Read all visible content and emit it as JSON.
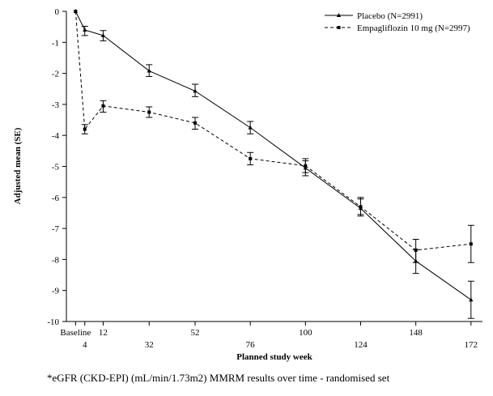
{
  "chart_data": {
    "type": "line",
    "title": "",
    "xlabel": "Planned study week",
    "ylabel": "Adjusted mean (SE)",
    "x": [
      0,
      4,
      12,
      32,
      52,
      76,
      100,
      124,
      148,
      172
    ],
    "x_tick_labels": [
      {
        "x": 0,
        "label": "Baseline",
        "row": 1
      },
      {
        "x": 4,
        "label": "4",
        "row": 2
      },
      {
        "x": 12,
        "label": "12",
        "row": 1
      },
      {
        "x": 32,
        "label": "32",
        "row": 2
      },
      {
        "x": 52,
        "label": "52",
        "row": 1
      },
      {
        "x": 76,
        "label": "76",
        "row": 2
      },
      {
        "x": 100,
        "label": "100",
        "row": 1
      },
      {
        "x": 124,
        "label": "124",
        "row": 2
      },
      {
        "x": 148,
        "label": "148",
        "row": 1
      },
      {
        "x": 172,
        "label": "172",
        "row": 2
      }
    ],
    "y_ticks": [
      0,
      -1,
      -2,
      -3,
      -4,
      -5,
      -6,
      -7,
      -8,
      -9,
      -10
    ],
    "xlim": [
      -4,
      177
    ],
    "ylim": [
      -10,
      0
    ],
    "grid": false,
    "legend_position": "top-right",
    "series": [
      {
        "name": "Placebo (N=2991)",
        "line_style": "solid",
        "marker": "triangle",
        "values": [
          0,
          -0.6,
          -0.78,
          -1.92,
          -2.57,
          -3.75,
          -5.05,
          -6.35,
          -8.05,
          -9.3
        ],
        "se_low": [
          0,
          -0.78,
          -0.95,
          -2.1,
          -2.75,
          -3.95,
          -5.3,
          -6.6,
          -8.45,
          -9.9
        ],
        "se_high": [
          0,
          -0.48,
          -0.62,
          -1.72,
          -2.35,
          -3.55,
          -4.82,
          -6.05,
          -7.68,
          -8.7
        ]
      },
      {
        "name": "Empagliflozin 10 mg (N=2997)",
        "line_style": "dashed",
        "marker": "square",
        "values": [
          0,
          -3.8,
          -3.05,
          -3.25,
          -3.6,
          -4.75,
          -4.98,
          -6.3,
          -7.7,
          -7.5
        ],
        "se_low": [
          0,
          -3.95,
          -3.25,
          -3.42,
          -3.8,
          -4.95,
          -5.2,
          -6.55,
          -8.1,
          -8.1
        ],
        "se_high": [
          0,
          -3.65,
          -2.88,
          -3.08,
          -3.42,
          -4.55,
          -4.75,
          -6.0,
          -7.35,
          -6.9
        ]
      }
    ]
  },
  "caption": "*eGFR (CKD-EPI) (mL/min/1.73m2) MMRM results over time - randomised set"
}
